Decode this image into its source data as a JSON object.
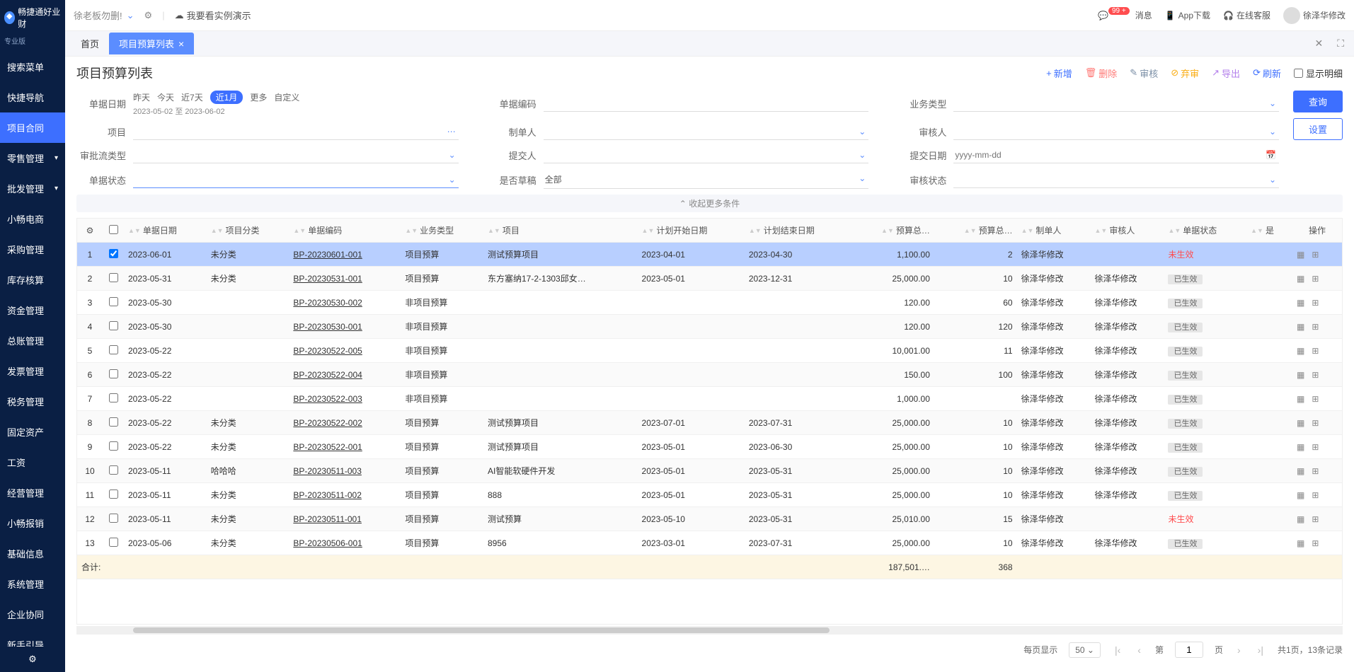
{
  "brand": {
    "name": "畅捷通好业财",
    "edition": "专业版"
  },
  "sidebar": {
    "items": [
      {
        "label": "搜索菜单",
        "caret": false
      },
      {
        "label": "快捷导航",
        "caret": false
      },
      {
        "label": "项目合同",
        "caret": false,
        "active": true
      },
      {
        "label": "零售管理",
        "caret": true
      },
      {
        "label": "批发管理",
        "caret": true
      },
      {
        "label": "小畅电商",
        "caret": false
      },
      {
        "label": "采购管理",
        "caret": false
      },
      {
        "label": "库存核算",
        "caret": false
      },
      {
        "label": "资金管理",
        "caret": false
      },
      {
        "label": "总账管理",
        "caret": false
      },
      {
        "label": "发票管理",
        "caret": false
      },
      {
        "label": "税务管理",
        "caret": false
      },
      {
        "label": "固定资产",
        "caret": false
      },
      {
        "label": "工资",
        "caret": false
      },
      {
        "label": "经营管理",
        "caret": false
      },
      {
        "label": "小畅报销",
        "caret": false
      },
      {
        "label": "基础信息",
        "caret": false
      },
      {
        "label": "系统管理",
        "caret": false
      },
      {
        "label": "企业协同",
        "caret": false
      },
      {
        "label": "新手引导",
        "caret": false
      }
    ]
  },
  "topbar": {
    "company": "徐老板勿删!",
    "demo": "我要看实例演示",
    "msg": "消息",
    "badge": "99 +",
    "download": "App下载",
    "service": "在线客服",
    "user": "徐泽华修改"
  },
  "tabs": {
    "home": "首页",
    "current": "项目预算列表"
  },
  "page": {
    "title": "项目预算列表",
    "actions": {
      "add": "新增",
      "delete": "删除",
      "audit": "审核",
      "abandon": "弃审",
      "export": "导出",
      "refresh": "刷新",
      "detail": "显示明细"
    }
  },
  "filter": {
    "labels": {
      "date": "单据日期",
      "code": "单据编码",
      "btype": "业务类型",
      "project": "项目",
      "maker": "制单人",
      "auditor": "审核人",
      "flow": "审批流类型",
      "submitter": "提交人",
      "submitDate": "提交日期",
      "status": "单据状态",
      "draft": "是否草稿",
      "auditStatus": "审核状态"
    },
    "dateQuick": {
      "yesterday": "昨天",
      "today": "今天",
      "week": "近7天",
      "month": "近1月",
      "more": "更多",
      "custom": "自定义"
    },
    "dateRange": "2023-05-02 至 2023-06-02",
    "draftValue": "全部",
    "datePlaceholder": "yyyy-mm-dd",
    "btnQuery": "查询",
    "btnSetting": "设置",
    "collapse": "收起更多条件"
  },
  "table": {
    "columns": {
      "date": "单据日期",
      "category": "项目分类",
      "code": "单据编码",
      "btype": "业务类型",
      "project": "项目",
      "start": "计划开始日期",
      "end": "计划结束日期",
      "total1": "预算总…",
      "total2": "预算总…",
      "maker": "制单人",
      "auditor": "审核人",
      "status": "单据状态",
      "flag": "是",
      "ops": "操作"
    },
    "rows": [
      {
        "idx": 1,
        "date": "2023-06-01",
        "category": "未分类",
        "code": "BP-20230601-001",
        "btype": "项目预算",
        "project": "测试预算项目",
        "start": "2023-04-01",
        "end": "2023-04-30",
        "total1": "1,100.00",
        "total2": "2",
        "maker": "徐泽华修改",
        "auditor": "",
        "status": "未生效",
        "statusCls": "inactive",
        "selected": true
      },
      {
        "idx": 2,
        "date": "2023-05-31",
        "category": "未分类",
        "code": "BP-20230531-001",
        "btype": "项目预算",
        "project": "东方塞纳17-2-1303邱女…",
        "start": "2023-05-01",
        "end": "2023-12-31",
        "total1": "25,000.00",
        "total2": "10",
        "maker": "徐泽华修改",
        "auditor": "徐泽华修改",
        "status": "已生效",
        "statusCls": "active"
      },
      {
        "idx": 3,
        "date": "2023-05-30",
        "category": "",
        "code": "BP-20230530-002",
        "btype": "非项目预算",
        "project": "",
        "start": "",
        "end": "",
        "total1": "120.00",
        "total2": "60",
        "maker": "徐泽华修改",
        "auditor": "徐泽华修改",
        "status": "已生效",
        "statusCls": "active"
      },
      {
        "idx": 4,
        "date": "2023-05-30",
        "category": "",
        "code": "BP-20230530-001",
        "btype": "非项目预算",
        "project": "",
        "start": "",
        "end": "",
        "total1": "120.00",
        "total2": "120",
        "maker": "徐泽华修改",
        "auditor": "徐泽华修改",
        "status": "已生效",
        "statusCls": "active"
      },
      {
        "idx": 5,
        "date": "2023-05-22",
        "category": "",
        "code": "BP-20230522-005",
        "btype": "非项目预算",
        "project": "",
        "start": "",
        "end": "",
        "total1": "10,001.00",
        "total2": "11",
        "maker": "徐泽华修改",
        "auditor": "徐泽华修改",
        "status": "已生效",
        "statusCls": "active"
      },
      {
        "idx": 6,
        "date": "2023-05-22",
        "category": "",
        "code": "BP-20230522-004",
        "btype": "非项目预算",
        "project": "",
        "start": "",
        "end": "",
        "total1": "150.00",
        "total2": "100",
        "maker": "徐泽华修改",
        "auditor": "徐泽华修改",
        "status": "已生效",
        "statusCls": "active"
      },
      {
        "idx": 7,
        "date": "2023-05-22",
        "category": "",
        "code": "BP-20230522-003",
        "btype": "非项目预算",
        "project": "",
        "start": "",
        "end": "",
        "total1": "1,000.00",
        "total2": "",
        "maker": "徐泽华修改",
        "auditor": "徐泽华修改",
        "status": "已生效",
        "statusCls": "active"
      },
      {
        "idx": 8,
        "date": "2023-05-22",
        "category": "未分类",
        "code": "BP-20230522-002",
        "btype": "项目预算",
        "project": "测试预算项目",
        "start": "2023-07-01",
        "end": "2023-07-31",
        "total1": "25,000.00",
        "total2": "10",
        "maker": "徐泽华修改",
        "auditor": "徐泽华修改",
        "status": "已生效",
        "statusCls": "active"
      },
      {
        "idx": 9,
        "date": "2023-05-22",
        "category": "未分类",
        "code": "BP-20230522-001",
        "btype": "项目预算",
        "project": "测试预算项目",
        "start": "2023-05-01",
        "end": "2023-06-30",
        "total1": "25,000.00",
        "total2": "10",
        "maker": "徐泽华修改",
        "auditor": "徐泽华修改",
        "status": "已生效",
        "statusCls": "active"
      },
      {
        "idx": 10,
        "date": "2023-05-11",
        "category": "哈哈哈",
        "code": "BP-20230511-003",
        "btype": "项目预算",
        "project": "AI智能软硬件开发",
        "start": "2023-05-01",
        "end": "2023-05-31",
        "total1": "25,000.00",
        "total2": "10",
        "maker": "徐泽华修改",
        "auditor": "徐泽华修改",
        "status": "已生效",
        "statusCls": "active"
      },
      {
        "idx": 11,
        "date": "2023-05-11",
        "category": "未分类",
        "code": "BP-20230511-002",
        "btype": "项目预算",
        "project": "888",
        "start": "2023-05-01",
        "end": "2023-05-31",
        "total1": "25,000.00",
        "total2": "10",
        "maker": "徐泽华修改",
        "auditor": "徐泽华修改",
        "status": "已生效",
        "statusCls": "active"
      },
      {
        "idx": 12,
        "date": "2023-05-11",
        "category": "未分类",
        "code": "BP-20230511-001",
        "btype": "项目预算",
        "project": "测试预算",
        "start": "2023-05-10",
        "end": "2023-05-31",
        "total1": "25,010.00",
        "total2": "15",
        "maker": "徐泽华修改",
        "auditor": "",
        "status": "未生效",
        "statusCls": "inactive"
      },
      {
        "idx": 13,
        "date": "2023-05-06",
        "category": "未分类",
        "code": "BP-20230506-001",
        "btype": "项目预算",
        "project": "8956",
        "start": "2023-03-01",
        "end": "2023-07-31",
        "total1": "25,000.00",
        "total2": "10",
        "maker": "徐泽华修改",
        "auditor": "徐泽华修改",
        "status": "已生效",
        "statusCls": "active"
      }
    ],
    "total": {
      "label": "合计:",
      "total1": "187,501.…",
      "total2": "368"
    }
  },
  "pagination": {
    "perPage": "每页显示",
    "size": "50",
    "pageLabel1": "第",
    "page": "1",
    "pageLabel2": "页",
    "info": "共1页，13条记录"
  }
}
